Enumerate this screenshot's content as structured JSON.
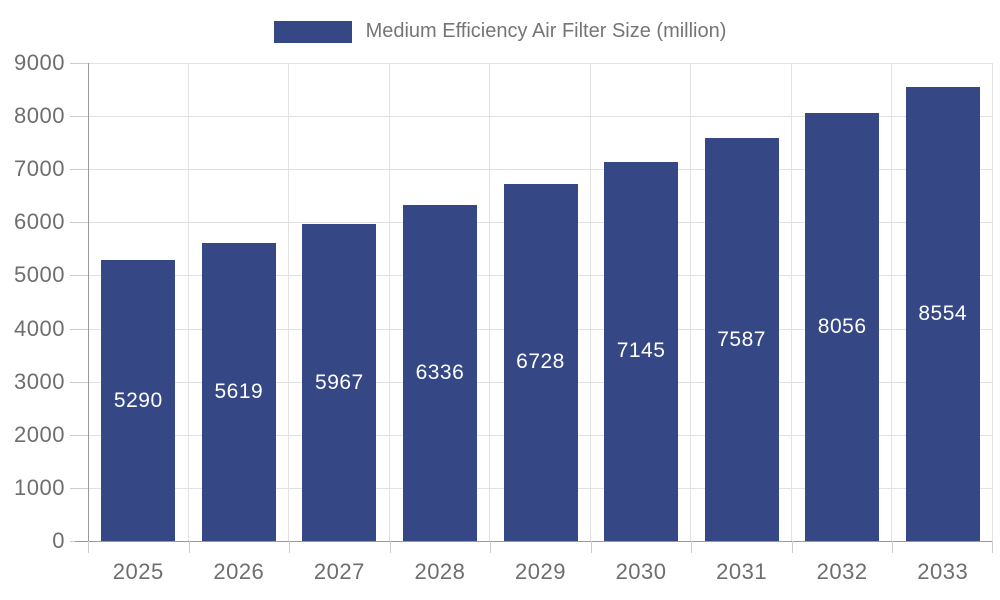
{
  "legend": {
    "label": "Medium Efficiency Air Filter Size (million)"
  },
  "colors": {
    "bar": "#354885",
    "grid": "#e2e2e2",
    "tick": "#cccccc",
    "axis": "#999999",
    "axis_text": "#6e6e6e",
    "legend_text": "#757575",
    "bar_label_text": "#ffffff"
  },
  "chart_data": {
    "type": "bar",
    "title": "",
    "xlabel": "",
    "ylabel": "",
    "categories": [
      "2025",
      "2026",
      "2027",
      "2028",
      "2029",
      "2030",
      "2031",
      "2032",
      "2033"
    ],
    "values": [
      5290,
      5619,
      5967,
      6336,
      6728,
      7145,
      7587,
      8056,
      8554
    ],
    "ylim": [
      0,
      9000
    ],
    "yticks": [
      0,
      1000,
      2000,
      3000,
      4000,
      5000,
      6000,
      7000,
      8000,
      9000
    ],
    "grid": true,
    "legend_entries": [
      "Medium Efficiency Air Filter Size (million)"
    ],
    "legend_position": "top",
    "value_label_position": "inside-center"
  }
}
